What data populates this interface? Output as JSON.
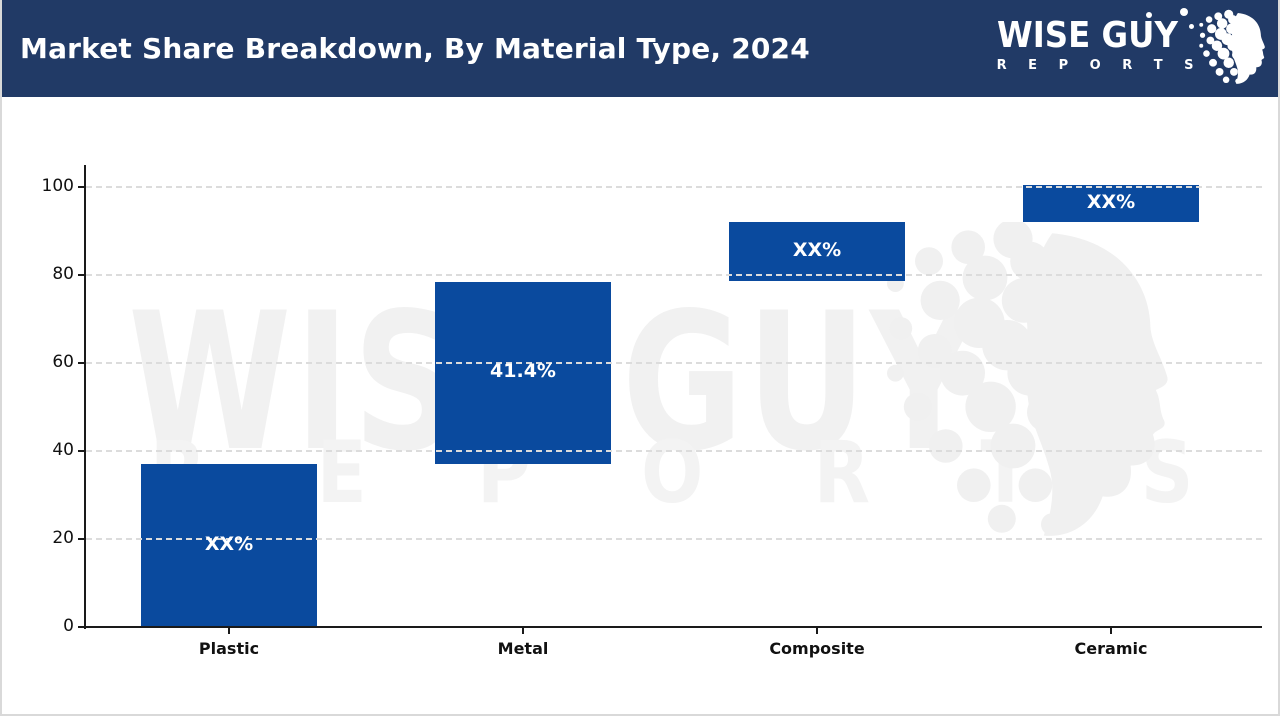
{
  "header": {
    "title": "Market Share Breakdown, By Material Type, 2024",
    "logo": {
      "line1": "WISE GUY",
      "line2": "R E P O R T S"
    }
  },
  "watermark": {
    "line1": "WISE GUY",
    "line2": "R E P O R T S"
  },
  "colors": {
    "header_bg": "#213a66",
    "bar": "#0a4a9e",
    "grid": "#dcdcdc",
    "axis": "#1a1a1a",
    "title_text": "#ffffff",
    "bar_label_text": "#ffffff",
    "watermark": "#f1f1f1"
  },
  "chart_data": {
    "type": "bar",
    "variant": "waterfall",
    "title": "Market Share Breakdown, By Material Type, 2024",
    "categories": [
      "Plastic",
      "Metal",
      "Composite",
      "Ceramic"
    ],
    "bars": [
      {
        "category": "Plastic",
        "start": 0,
        "end": 37,
        "label": "XX%"
      },
      {
        "category": "Metal",
        "start": 37,
        "end": 78.4,
        "label": "41.4%"
      },
      {
        "category": "Composite",
        "start": 78.6,
        "end": 92,
        "label": "XX%"
      },
      {
        "category": "Ceramic",
        "start": 92,
        "end": 100.5,
        "label": "XX%"
      }
    ],
    "xlabel": "",
    "ylabel": "",
    "ylim": [
      0,
      100
    ],
    "yticks": [
      0,
      20,
      40,
      60,
      80,
      100
    ],
    "grid": "horizontal-dashed-above-bars",
    "legend": "none"
  }
}
